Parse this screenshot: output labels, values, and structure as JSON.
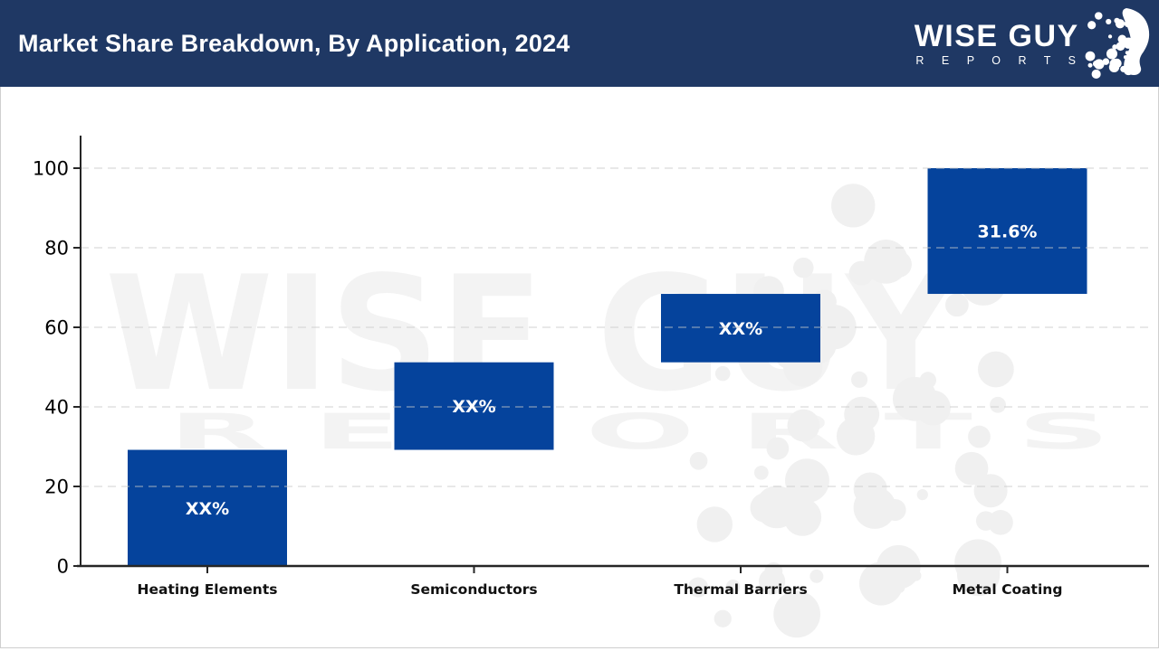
{
  "header": {
    "title": "Market Share Breakdown, By Application, 2024",
    "bg_color": "#1f3864",
    "logo": {
      "line1": "WISE GUY",
      "line2": "R E P O R T S"
    }
  },
  "watermark": {
    "line1": "WISE GUY",
    "line2": "R E P O R T S"
  },
  "chart_data": {
    "type": "bar",
    "subtype": "waterfall",
    "title": "Market Share Breakdown, By Application, 2024",
    "categories": [
      "Heating Elements",
      "Semiconductors",
      "Thermal Barriers",
      "Metal Coating"
    ],
    "segments": [
      {
        "category": "Heating Elements",
        "start": 0,
        "end": 29.2,
        "value": 29.2,
        "label": "XX%"
      },
      {
        "category": "Semiconductors",
        "start": 29.2,
        "end": 51.2,
        "value": 22.0,
        "label": "XX%"
      },
      {
        "category": "Thermal Barriers",
        "start": 51.2,
        "end": 68.4,
        "value": 17.2,
        "label": "XX%"
      },
      {
        "category": "Metal Coating",
        "start": 68.4,
        "end": 100,
        "value": 31.6,
        "label": "31.6%"
      }
    ],
    "xlabel": "",
    "ylabel": "",
    "ylim": [
      0,
      108
    ],
    "yticks": [
      0,
      20,
      40,
      60,
      80,
      100
    ],
    "ytick_labels": [
      "0",
      "20",
      "40",
      "60",
      "80",
      "100"
    ],
    "grid": "horizontal-dashed",
    "legend": "none",
    "bar_color": "#05439c",
    "bar_label_color": "#ffffff",
    "axis_color": "#262626",
    "grid_color": "#c8c8c8"
  }
}
